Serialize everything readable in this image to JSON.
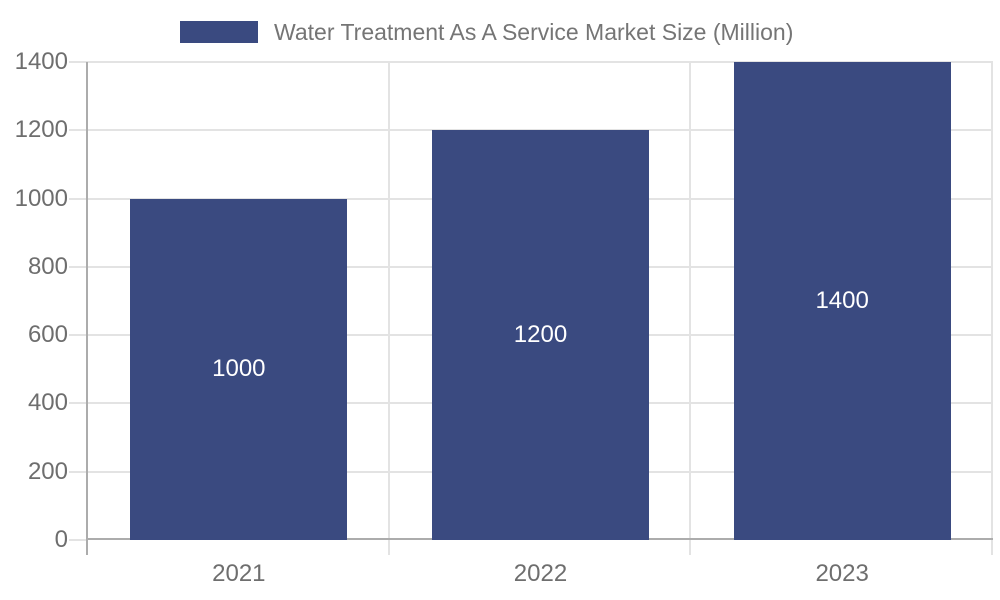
{
  "legend": {
    "label": "Water Treatment As A Service Market Size (Million)"
  },
  "chart_data": {
    "type": "bar",
    "title": "Water Treatment As A Service Market Size (Million)",
    "categories": [
      "2021",
      "2022",
      "2023"
    ],
    "values": [
      1000,
      1200,
      1400
    ],
    "series": [
      {
        "name": "Water Treatment As A Service Market Size (Million)",
        "values": [
          1000,
          1200,
          1400
        ]
      }
    ],
    "data_labels": [
      "1000",
      "1200",
      "1400"
    ],
    "xlabel": "",
    "ylabel": "",
    "ylim": [
      0,
      1400
    ],
    "yticks": [
      0,
      200,
      400,
      600,
      800,
      1000,
      1200,
      1400
    ],
    "grid": true,
    "legend_position": "top-center",
    "colors": {
      "bar": "#3A4A80",
      "bar_label": "#FFFFFF",
      "axis_text": "#6E6E6E",
      "legend_text": "#757575",
      "axis_line": "#ACACAC",
      "grid_line": "#E3E3E3",
      "background": "#FFFFFF"
    }
  }
}
